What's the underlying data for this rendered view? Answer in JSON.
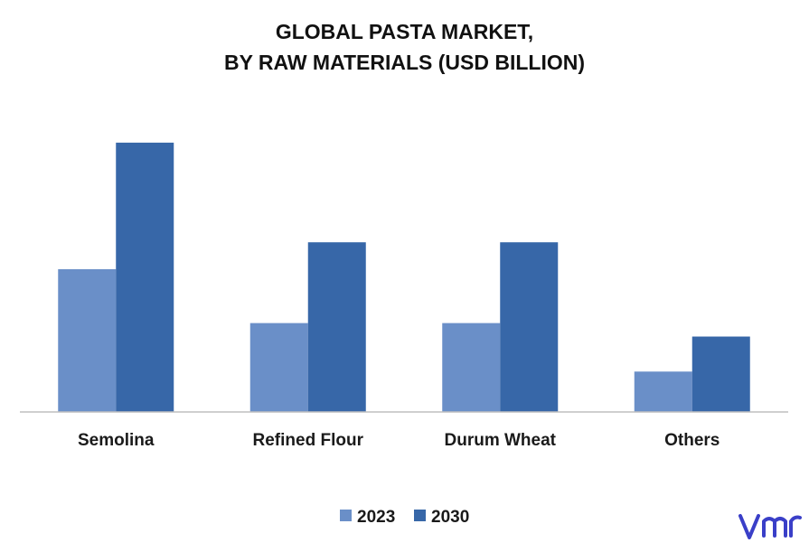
{
  "chart_data": {
    "type": "bar",
    "title_lines": [
      "GLOBAL PASTA MARKET,",
      "BY RAW MATERIALS (USD BILLION)"
    ],
    "categories": [
      "Semolina",
      "Refined Flour",
      "Durum Wheat",
      "Others"
    ],
    "series": [
      {
        "name": "2023",
        "color": "#6a8fc8",
        "values": [
          5.3,
          3.3,
          3.3,
          1.5
        ]
      },
      {
        "name": "2030",
        "color": "#3767a8",
        "values": [
          10.0,
          6.3,
          6.3,
          2.8
        ]
      }
    ],
    "ylim": [
      0,
      10.6
    ],
    "grid": false,
    "legend_position": "bottom-center"
  },
  "logo": {
    "text": "vmr",
    "color": "#3a3fc8"
  }
}
